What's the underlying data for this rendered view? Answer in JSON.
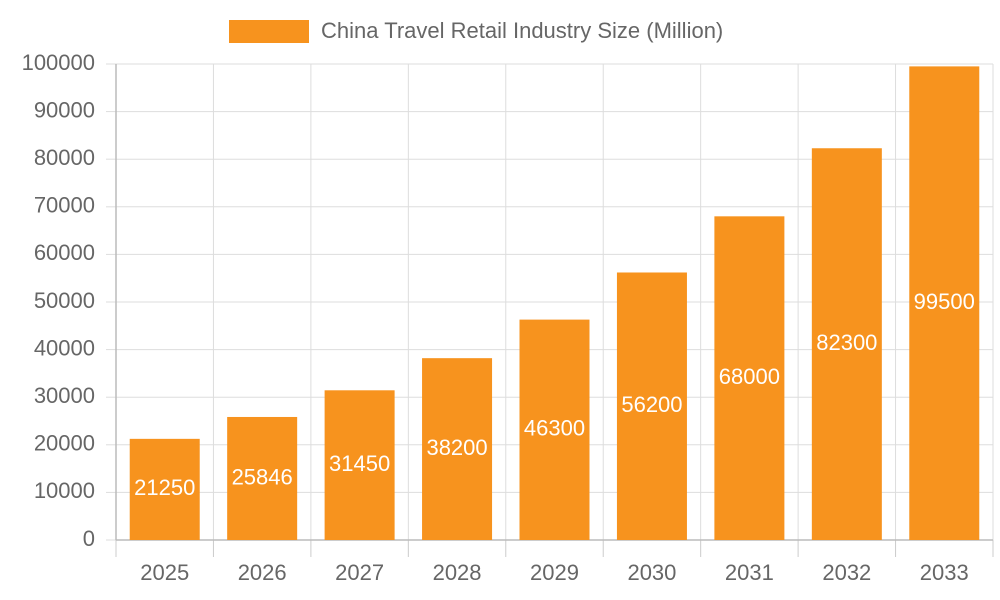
{
  "chart_data": {
    "type": "bar",
    "categories": [
      "2025",
      "2026",
      "2027",
      "2028",
      "2029",
      "2030",
      "2031",
      "2032",
      "2033"
    ],
    "series": [
      {
        "name": "China Travel Retail Industry Size (Million)",
        "color": "#f7931e",
        "values": [
          21250,
          25846,
          31450,
          38200,
          46300,
          56200,
          68000,
          82300,
          99500
        ]
      }
    ],
    "ylim": [
      0,
      100000
    ],
    "yticks": [
      0,
      10000,
      20000,
      30000,
      40000,
      50000,
      60000,
      70000,
      80000,
      90000,
      100000
    ],
    "grid": true,
    "legend": "top"
  }
}
